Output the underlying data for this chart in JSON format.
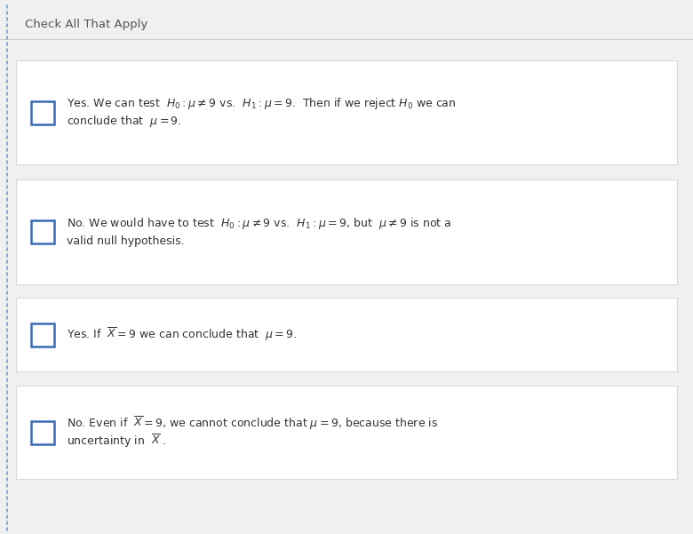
{
  "title": "Check All That Apply",
  "bg_color": "#f0f0f0",
  "card_color": "#ffffff",
  "card_edge_color": "#d8d8d8",
  "border_color": "#3a6bb5",
  "title_color": "#555555",
  "text_color": "#333333",
  "title_fontsize": 9.5,
  "text_fontsize": 9.0,
  "dot_color": "#7799cc",
  "options": [
    {
      "line1": "Yes. We can test  $H_0 : \\mu \\neq 9$ vs.  $H_1 : \\mu = 9$.  Then if we reject $H_0$ we can",
      "line2": "conclude that  $\\mu = 9$."
    },
    {
      "line1": "No. We would have to test  $H_0 : \\mu \\neq 9$ vs.  $H_1 : \\mu = 9$, but  $\\mu \\neq 9$ is not a",
      "line2": "valid null hypothesis."
    },
    {
      "line1": "Yes. If  $\\overline{X} = 9$ we can conclude that  $\\mu = 9$.",
      "line2": ""
    },
    {
      "line1": "No. Even if  $\\overline{X} = 9$, we cannot conclude that $\\mu = 9$, because there is",
      "line2": "uncertainty in  $\\overline{X}$ ."
    }
  ]
}
